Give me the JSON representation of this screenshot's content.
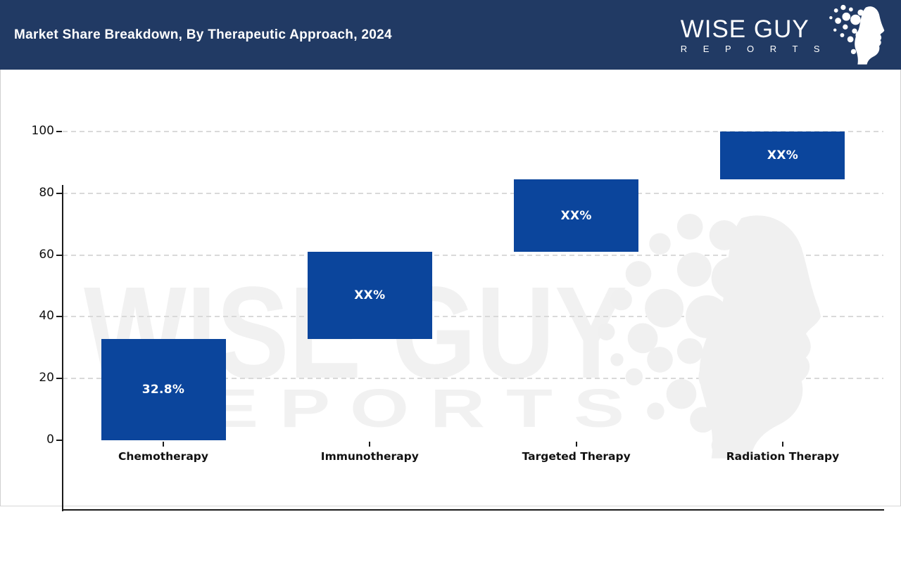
{
  "header": {
    "title": "Market Share Breakdown, By Therapeutic Approach, 2024",
    "logo": {
      "name": "Wise Guy Reports",
      "line1": "WISE GUY",
      "line2": "R E P O R T S"
    }
  },
  "watermark": {
    "line1": "WISE GUY",
    "line2": "R E P O R T S"
  },
  "colors": {
    "header_bg": "#213a64",
    "bar_fill": "#0b459c",
    "grid": "#d9d9d9",
    "axis": "#1a1a1a",
    "watermark_text": "#f1f1f1",
    "watermark_head": "#f0f0f0"
  },
  "chart_data": {
    "type": "bar",
    "subtype": "waterfall",
    "title": "Market Share Breakdown, By Therapeutic Approach, 2024",
    "xlabel": "",
    "ylabel": "",
    "categories": [
      "Chemotherapy",
      "Immunotherapy",
      "Targeted Therapy",
      "Radiation Therapy"
    ],
    "bars": [
      {
        "category": "Chemotherapy",
        "start": 0,
        "end": 32.8,
        "value": 32.8,
        "label": "32.8%"
      },
      {
        "category": "Immunotherapy",
        "start": 32.8,
        "end": 61.0,
        "value": 28.2,
        "label": "XX%"
      },
      {
        "category": "Targeted Therapy",
        "start": 61.0,
        "end": 84.4,
        "value": 23.4,
        "label": "XX%"
      },
      {
        "category": "Radiation Therapy",
        "start": 84.4,
        "end": 100.0,
        "value": 15.6,
        "label": "XX%"
      }
    ],
    "yticks": [
      0,
      20,
      40,
      60,
      80,
      100
    ],
    "ylim": [
      0,
      105
    ],
    "grid": true,
    "grid_style": "dashed",
    "legend": false
  }
}
